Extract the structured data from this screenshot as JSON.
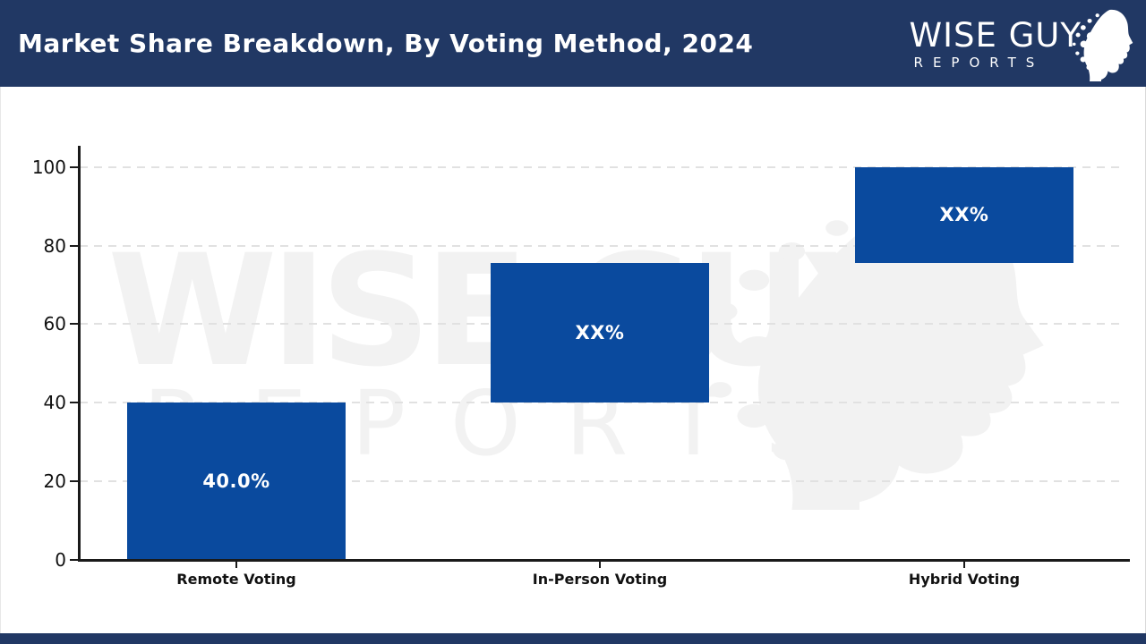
{
  "header": {
    "title": "Market Share Breakdown, By Voting Method, 2024",
    "logo": {
      "line1": "WISE GUY",
      "line2": "REPORTS"
    }
  },
  "watermark": {
    "line1": "WISE GUY",
    "line2": "REPORTS"
  },
  "chart_data": {
    "type": "bar",
    "subtype": "floating-segment-waterfall",
    "title": "Market Share Breakdown, By Voting Method, 2024",
    "xlabel": "",
    "ylabel": "",
    "categories": [
      "Remote Voting",
      "In-Person Voting",
      "Hybrid Voting"
    ],
    "bars": [
      {
        "category": "Remote Voting",
        "start": 0,
        "end": 40,
        "value": 40.0,
        "value_label": "40.0%"
      },
      {
        "category": "In-Person Voting",
        "start": 40,
        "end": 75.7,
        "value": 35.7,
        "value_label": "XX%"
      },
      {
        "category": "Hybrid Voting",
        "start": 75.7,
        "end": 100,
        "value": 24.3,
        "value_label": "XX%"
      }
    ],
    "ylim": [
      0,
      100
    ],
    "yticks": [
      0,
      20,
      40,
      60,
      80,
      100
    ],
    "grid": "horizontal-dashed",
    "legend_position": "none",
    "bar_color": "#0a4a9e",
    "bar_label_color": "#ffffff"
  },
  "colors": {
    "header_bg": "#213864",
    "footer_bg": "#213864",
    "bar": "#0a4a9e",
    "watermark": "#f2f2f2",
    "gridline": "#e1e1e1",
    "axis": "#1a1a1a"
  }
}
